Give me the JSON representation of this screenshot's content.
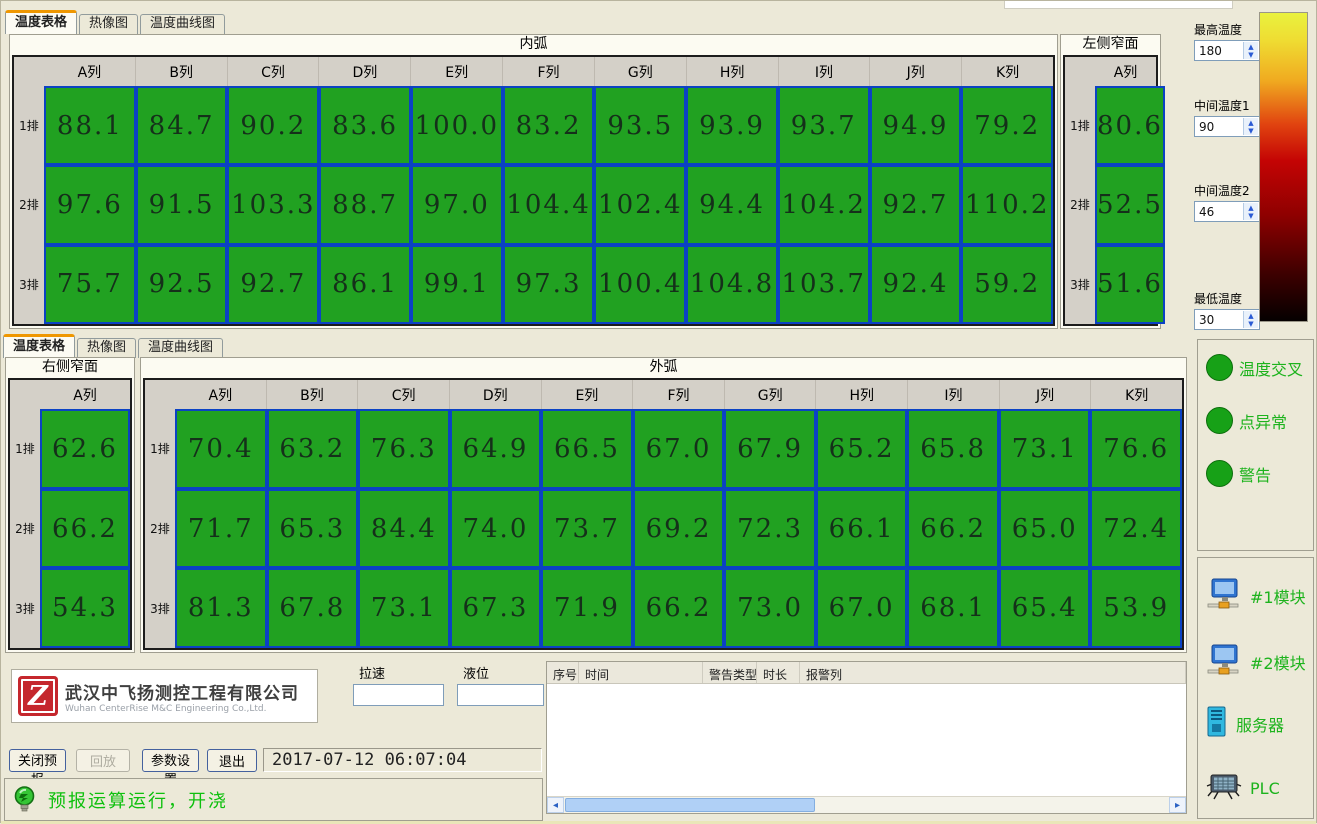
{
  "tab_strips": {
    "items": [
      "温度表格",
      "热像图",
      "温度曲线图"
    ],
    "active": "温度表格"
  },
  "inner_arc": {
    "title": "内弧",
    "columns": [
      "A列",
      "B列",
      "C列",
      "D列",
      "E列",
      "F列",
      "G列",
      "H列",
      "I列",
      "J列",
      "K列"
    ],
    "row_labels": [
      "1排",
      "2排",
      "3排"
    ],
    "rows": [
      [
        "88.1",
        "84.7",
        "90.2",
        "83.6",
        "100.0",
        "83.2",
        "93.5",
        "93.9",
        "93.7",
        "94.9",
        "79.2"
      ],
      [
        "97.6",
        "91.5",
        "103.3",
        "88.7",
        "97.0",
        "104.4",
        "102.4",
        "94.4",
        "104.2",
        "92.7",
        "110.2"
      ],
      [
        "75.7",
        "92.5",
        "92.7",
        "86.1",
        "99.1",
        "97.3",
        "100.4",
        "104.8",
        "103.7",
        "92.4",
        "59.2"
      ]
    ]
  },
  "left_narrow": {
    "title": "左侧窄面",
    "columns": [
      "A列"
    ],
    "row_labels": [
      "1排",
      "2排",
      "3排"
    ],
    "rows": [
      [
        "80.6"
      ],
      [
        "52.5"
      ],
      [
        "51.6"
      ]
    ]
  },
  "right_narrow": {
    "title": "右侧窄面",
    "columns": [
      "A列"
    ],
    "row_labels": [
      "1排",
      "2排",
      "3排"
    ],
    "rows": [
      [
        "62.6"
      ],
      [
        "66.2"
      ],
      [
        "54.3"
      ]
    ]
  },
  "outer_arc": {
    "title": "外弧",
    "columns": [
      "A列",
      "B列",
      "C列",
      "D列",
      "E列",
      "F列",
      "G列",
      "H列",
      "I列",
      "J列",
      "K列"
    ],
    "row_labels": [
      "1排",
      "2排",
      "3排"
    ],
    "rows": [
      [
        "70.4",
        "63.2",
        "76.3",
        "64.9",
        "66.5",
        "67.0",
        "67.9",
        "65.2",
        "65.8",
        "73.1",
        "76.6"
      ],
      [
        "71.7",
        "65.3",
        "84.4",
        "74.0",
        "73.7",
        "69.2",
        "72.3",
        "66.1",
        "66.2",
        "65.0",
        "72.4"
      ],
      [
        "81.3",
        "67.8",
        "73.1",
        "67.3",
        "71.9",
        "66.2",
        "73.0",
        "67.0",
        "68.1",
        "65.4",
        "53.9"
      ]
    ]
  },
  "temp_settings": [
    {
      "label": "最高温度",
      "value": "180"
    },
    {
      "label": "中间温度1",
      "value": "90"
    },
    {
      "label": "中间温度2",
      "value": "46"
    },
    {
      "label": "最低温度",
      "value": "30"
    }
  ],
  "indicators": [
    {
      "label": "温度交叉"
    },
    {
      "label": "点异常"
    },
    {
      "label": "警告"
    }
  ],
  "devices": [
    {
      "label": "#1模块",
      "icon": "computer-icon"
    },
    {
      "label": "#2模块",
      "icon": "computer-icon"
    },
    {
      "label": "服务器",
      "icon": "server-icon"
    },
    {
      "label": "PLC",
      "icon": "plc-chip-icon"
    }
  ],
  "company": {
    "logo_text": "Z",
    "name_cn": "武汉中飞扬测控工程有限公司",
    "name_en": "Wuhan CenterRise M&C Engineering Co.,Ltd."
  },
  "fields": [
    {
      "label": "拉速",
      "value": ""
    },
    {
      "label": "液位",
      "value": ""
    }
  ],
  "alarm_table": {
    "headers": [
      "序号",
      "时间",
      "警告类型",
      "时长",
      "报警列"
    ],
    "rows": []
  },
  "buttons": [
    {
      "label": "关闭预报",
      "enabled": true
    },
    {
      "label": "回放",
      "enabled": false
    },
    {
      "label": "参数设置",
      "enabled": true
    },
    {
      "label": "退出",
      "enabled": true
    }
  ],
  "clock": "2017-07-12 06:07:04",
  "status": "预报运算运行，开浇",
  "colors": {
    "cell_green": "#21a121",
    "cell_border_blue": "#0b42c4",
    "indicator_green": "#17a117",
    "label_green": "#1db31d",
    "status_green": "#0ec00e",
    "tab_accent_orange": "#ef9700",
    "gradient_top": "#e9f23e",
    "gradient_mid": "#c40404",
    "gradient_bottom": "#050000"
  }
}
